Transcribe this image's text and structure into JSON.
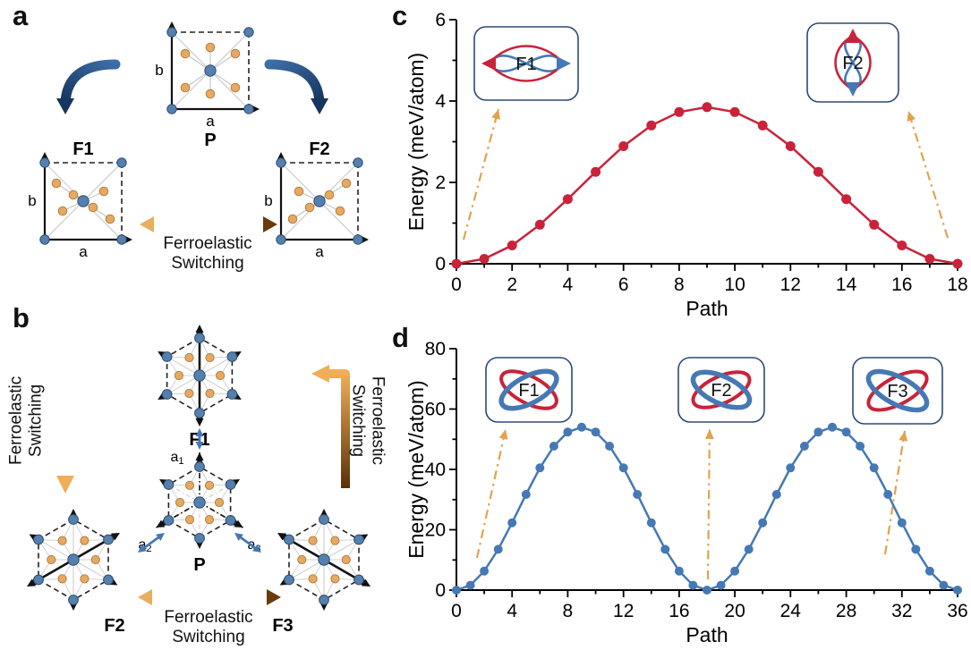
{
  "colors": {
    "red_series": "#c9233a",
    "blue_series": "#4679b4",
    "atom_blue": "#5580ad",
    "atom_orange": "#e6a963",
    "inset_border": "#2c4a76",
    "annotation_orange": "#e2a24e",
    "arrow_blue_dark": "#16365f",
    "arrow_blue_light": "#3d6ea6",
    "arrow_brown_dark": "#6b3a0a",
    "arrow_orange_light": "#e9ae5e"
  },
  "panels": {
    "a": {
      "label": "a",
      "top_structure_label": "P",
      "bottom_left_structure_label": "F1",
      "bottom_right_structure_label": "F2",
      "axis_a": "a",
      "axis_b": "b",
      "switch_arrow_label": "Ferroelastic Switching"
    },
    "b": {
      "label": "b",
      "top_structure_label": "F1",
      "center_structure_label": "P",
      "bottom_left_structure_label": "F2",
      "bottom_right_structure_label": "F3",
      "axis_a1": {
        "base": "a",
        "sub": "1"
      },
      "axis_a2": {
        "base": "a",
        "sub": "2"
      },
      "axis_a3": {
        "base": "a",
        "sub": "3"
      },
      "left_switch_label": "Ferroelastic Switching",
      "right_switch_label": "Ferroelastic Switching",
      "bottom_switch_label": "Ferroelastic Switching"
    },
    "c": {
      "label": "c"
    },
    "d": {
      "label": "d"
    }
  },
  "chart_data": [
    {
      "id": "c",
      "type": "line",
      "title": "",
      "xlabel": "Path",
      "ylabel": "Energy (meV/atom)",
      "xlim": [
        0,
        18
      ],
      "ylim": [
        0,
        6
      ],
      "xtick_step": 2,
      "xminor_step": 1,
      "ytick_step": 2,
      "yminor_step": 1,
      "legend": "none",
      "grid": false,
      "color": "#c9233a",
      "x": [
        0,
        1,
        2,
        3,
        4,
        5,
        6,
        7,
        8,
        9,
        10,
        11,
        12,
        13,
        14,
        15,
        16,
        17,
        18
      ],
      "y": [
        0,
        0.12,
        0.45,
        0.96,
        1.59,
        2.26,
        2.89,
        3.4,
        3.73,
        3.85,
        3.73,
        3.4,
        2.89,
        2.26,
        1.59,
        0.96,
        0.45,
        0.12,
        0
      ],
      "insets": [
        {
          "label": "F1"
        },
        {
          "label": "F2"
        }
      ]
    },
    {
      "id": "d",
      "type": "line",
      "title": "",
      "xlabel": "Path",
      "ylabel": "Energy (meV/atom)",
      "xlim": [
        0,
        36
      ],
      "ylim": [
        0,
        80
      ],
      "xtick_step": 4,
      "xminor_step": 2,
      "ytick_step": 20,
      "yminor_step": 10,
      "legend": "none",
      "grid": false,
      "color": "#4679b4",
      "x": [
        0,
        1,
        2,
        3,
        4,
        5,
        6,
        7,
        8,
        9,
        10,
        11,
        12,
        13,
        14,
        15,
        16,
        17,
        18,
        19,
        20,
        21,
        22,
        23,
        24,
        25,
        26,
        27,
        28,
        29,
        30,
        31,
        32,
        33,
        34,
        35,
        36
      ],
      "y": [
        0,
        1.6,
        6.3,
        13.5,
        22.3,
        31.7,
        40.5,
        47.7,
        52.4,
        54,
        52.4,
        47.7,
        40.5,
        31.7,
        22.3,
        13.5,
        6.3,
        1.6,
        0,
        1.6,
        6.3,
        13.5,
        22.3,
        31.7,
        40.5,
        47.7,
        52.4,
        54,
        52.4,
        47.7,
        40.5,
        31.7,
        22.3,
        13.5,
        6.3,
        1.6,
        0
      ],
      "insets": [
        {
          "label": "F1"
        },
        {
          "label": "F2"
        },
        {
          "label": "F3"
        }
      ]
    }
  ]
}
